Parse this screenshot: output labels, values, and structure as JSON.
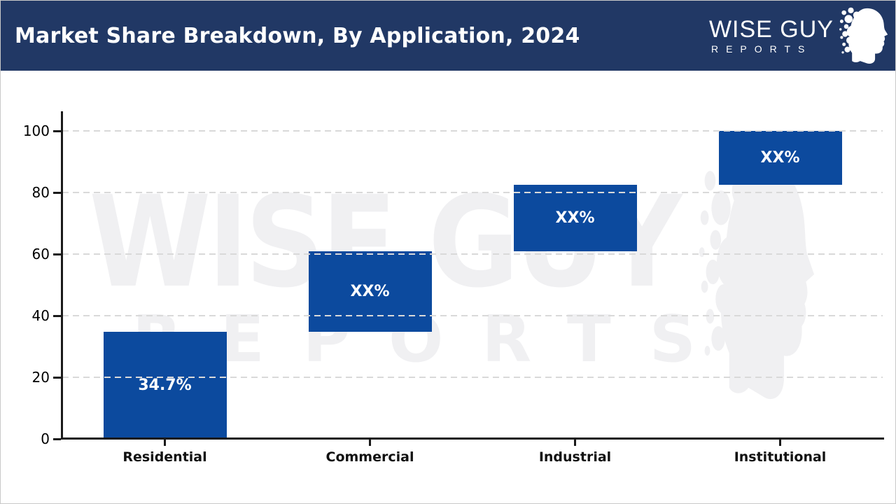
{
  "header": {
    "title": "Market Share Breakdown, By Application, 2024",
    "logo": {
      "name": "WISE GUY",
      "tagline": "REPORTS"
    }
  },
  "watermark": {
    "name": "WISE GUY",
    "tagline": "REPORTS"
  },
  "colors": {
    "header_bg": "#213865",
    "bar": "#0c4a9e",
    "bar_label": "#ffffff",
    "gridline": "#d9d9d9",
    "axis": "#1a1a1a",
    "watermark": "#f0f0f2",
    "background": "#ffffff"
  },
  "chart_data": {
    "type": "bar",
    "variant": "floating stacked segments (waterfall-style market share breakdown)",
    "title": "Market Share Breakdown, By Application, 2024",
    "categories": [
      "Residential",
      "Commercial",
      "Industrial",
      "Institutional"
    ],
    "series": [
      {
        "name": "Market share segment",
        "bars": [
          {
            "category": "Residential",
            "from": 0,
            "to": 34.7,
            "value_label": "34.7%"
          },
          {
            "category": "Commercial",
            "from": 34.7,
            "to": 61,
            "value_label": "XX%"
          },
          {
            "category": "Industrial",
            "from": 61,
            "to": 82.5,
            "value_label": "XX%"
          },
          {
            "category": "Institutional",
            "from": 82.5,
            "to": 100,
            "value_label": "XX%"
          }
        ]
      }
    ],
    "xlabel": "",
    "ylabel": "",
    "ylim": [
      0,
      105
    ],
    "yticks": [
      0,
      20,
      40,
      60,
      80,
      100
    ],
    "grid": "horizontal dashed",
    "legend_position": "none"
  }
}
